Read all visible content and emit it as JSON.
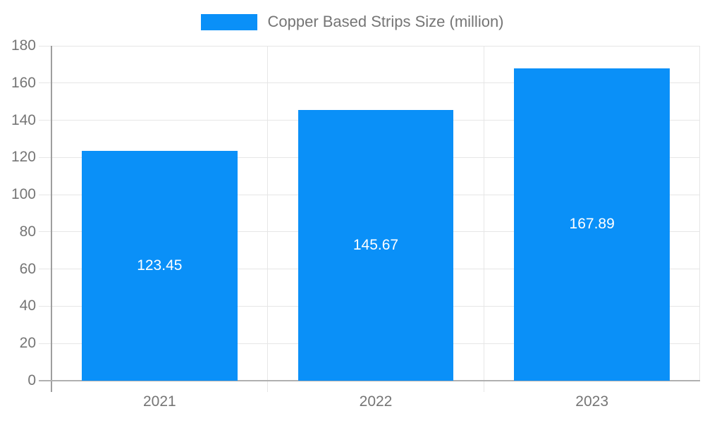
{
  "chart_data": {
    "type": "bar",
    "title": "Copper Based Strips Size (million)",
    "categories": [
      "2021",
      "2022",
      "2023"
    ],
    "values": [
      123.45,
      145.67,
      167.89
    ],
    "value_labels": [
      "123.45",
      "145.67",
      "167.89"
    ],
    "series_name": "Copper Based Strips Size (million)",
    "xlabel": "",
    "ylabel": "",
    "ylim": [
      0,
      180
    ],
    "ytick_step": 20,
    "yticks": [
      0,
      20,
      40,
      60,
      80,
      100,
      120,
      140,
      160,
      180
    ],
    "grid": "horizontal-and-category-boundaries",
    "legend_position": "top-center",
    "colors": {
      "bar": "#0a90f8",
      "legend_text": "#757575",
      "tick_text": "#757575",
      "value_text": "#ffffff",
      "gridline": "#e6e6e6",
      "axis": "#9e9e9e",
      "baseline": "#b0b0b0",
      "background": "#ffffff"
    },
    "bar_width_fraction": 0.72
  }
}
